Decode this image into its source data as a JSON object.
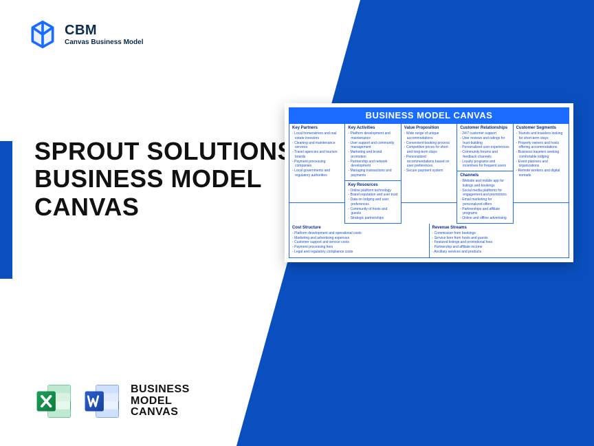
{
  "brand": {
    "abbr": "CBM",
    "full": "Canvas Business Model"
  },
  "headline": "SPROUT SOLUTIONS BUSINESS MODEL CANVAS",
  "footer_label": "BUSINESS\nMODEL\nCANVAS",
  "colors": {
    "primary": "#0a4fbf",
    "accent": "#1a6bff",
    "excel": "#1e9e5a",
    "excel_dark": "#0e7a40",
    "word": "#2a5fd0",
    "word_dark": "#17409e",
    "text": "#111111"
  },
  "canvas": {
    "title": "BUSINESS MODEL CANVAS",
    "columns": [
      {
        "stack": [
          {
            "title": "Key Partners",
            "items": [
              "Local homeowners and real estate investors",
              "Cleaning and maintenance services",
              "Travel agencies and tourism boards",
              "Payment processing companies",
              "Local governments and regulatory authorities"
            ]
          }
        ]
      },
      {
        "stack": [
          {
            "title": "Key Activities",
            "items": [
              "Platform development and maintenance",
              "User support and community management",
              "Marketing and brand promotion",
              "Partnership and network development",
              "Managing transactions and payments"
            ]
          },
          {
            "title": "Key Resources",
            "items": [
              "Online platform technology",
              "Brand reputation and user trust",
              "Data on lodging and user preferences",
              "Community of hosts and guests",
              "Strategic partnerships"
            ]
          }
        ]
      },
      {
        "stack": [
          {
            "title": "Value Proposition",
            "items": [
              "Wide range of unique accommodations",
              "Convenient booking process",
              "Competitive prices for short and long-term stays",
              "Personalized recommendations based on user preferences",
              "Secure payment system"
            ]
          }
        ]
      },
      {
        "stack": [
          {
            "title": "Customer Relationships",
            "items": [
              "24/7 customer support",
              "User reviews and ratings for trust-building",
              "Personalized user experiences",
              "Community forums and feedback channels",
              "Loyalty programs and incentives for frequent users"
            ]
          },
          {
            "title": "Channels",
            "items": [
              "Website and mobile app for listings and bookings",
              "Social media platforms for engagement and promotions",
              "Email marketing for personalized offers",
              "Partnerships and affiliate programs",
              "Online and offline advertising"
            ]
          }
        ]
      },
      {
        "stack": [
          {
            "title": "Customer Segments",
            "items": [
              "Tourists and travelers looking for short-term stays",
              "Property owners and hosts offering accommodations",
              "Business travelers seeking comfortable lodging",
              "Event planners and organizations",
              "Remote workers and digital nomads"
            ]
          }
        ]
      }
    ],
    "bottom": [
      {
        "title": "Cost Structure",
        "items": [
          "Platform development and operational costs",
          "Marketing and advertising expenses",
          "Customer support and service costs",
          "Payment processing fees",
          "Legal and regulatory compliance costs"
        ]
      },
      {
        "title": "Revenue Streams",
        "items": [
          "Commission from bookings",
          "Service fees from hosts and guests",
          "Featured listings and promotional fees",
          "Partnership and affiliate income",
          "Ancillary services and products"
        ]
      }
    ]
  }
}
